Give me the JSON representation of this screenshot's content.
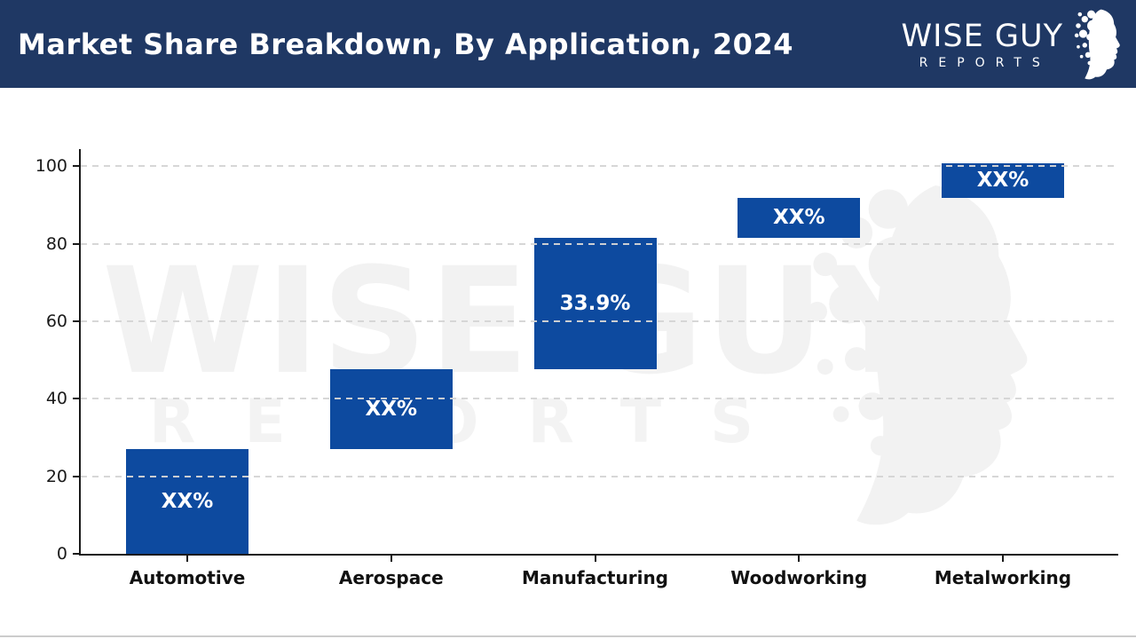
{
  "header": {
    "title": "Market Share Breakdown, By Application, 2024",
    "bg_color": "#1f3864",
    "logo": {
      "line1": "WISE GUY",
      "line2": "REPORTS",
      "head_icon": "dotted-head-profile-icon",
      "color": "#ffffff"
    }
  },
  "watermark": {
    "line1": "WISE GUY",
    "line2": "REPORTS",
    "color": "#f2f2f2"
  },
  "chart_data": {
    "type": "bar",
    "variant": "floating-waterfall",
    "title": "Market Share Breakdown, By Application, 2024",
    "categories": [
      "Automotive",
      "Aerospace",
      "Manufacturing",
      "Woodworking",
      "Metalworking"
    ],
    "segments": [
      {
        "category": "Automotive",
        "start": 0,
        "end": 27.1,
        "label": "XX%"
      },
      {
        "category": "Aerospace",
        "start": 27.1,
        "end": 47.6,
        "label": "XX%"
      },
      {
        "category": "Manufacturing",
        "start": 47.6,
        "end": 81.5,
        "label": "33.9%"
      },
      {
        "category": "Woodworking",
        "start": 81.5,
        "end": 91.9,
        "label": "XX%"
      },
      {
        "category": "Metalworking",
        "start": 91.9,
        "end": 100.7,
        "label": "XX%"
      }
    ],
    "yticks": [
      0,
      20,
      40,
      60,
      80,
      100
    ],
    "ylim": [
      0,
      104
    ],
    "xlabel": "",
    "ylabel": "",
    "grid": {
      "axis": "y",
      "style": "dashed",
      "color": "#d5d5d5"
    },
    "legend": null,
    "bar_color": "#0d4a9f",
    "bar_label_color": "#ffffff",
    "axis_color": "#1a1a1a"
  },
  "footer": {
    "divider_color": "#cccccc"
  }
}
